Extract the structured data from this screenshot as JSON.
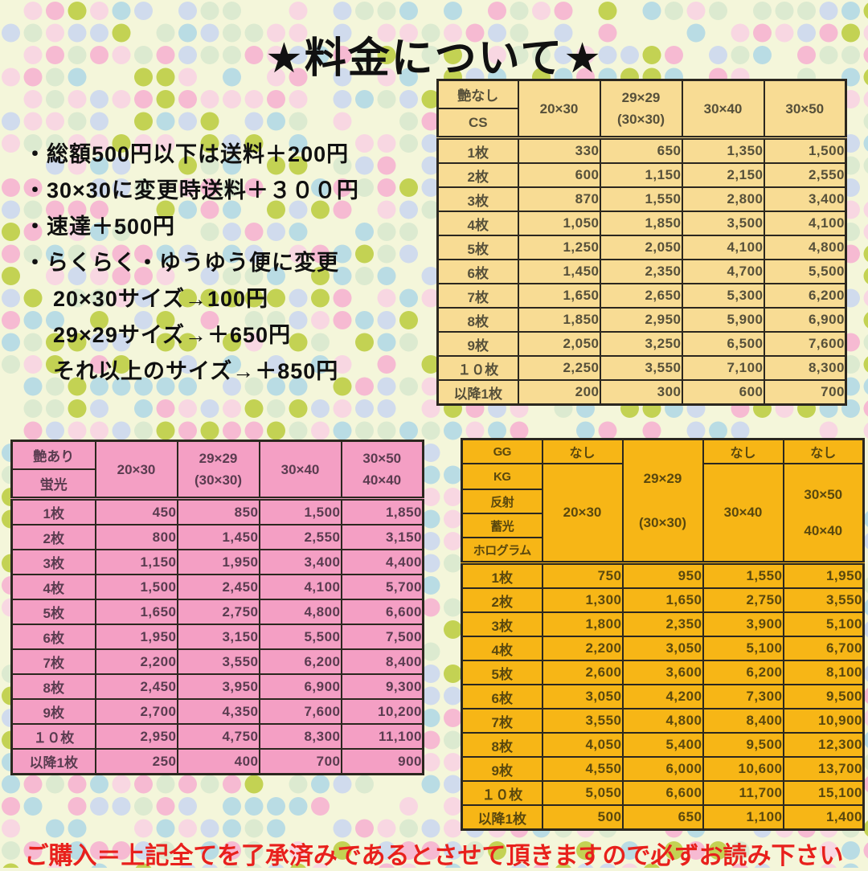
{
  "title": "★料金について★",
  "shipping_notes": [
    {
      "indent": false,
      "text": "・総額500円以下は送料＋200円"
    },
    {
      "indent": false,
      "text": "・30×30に変更時送料＋３００円"
    },
    {
      "indent": false,
      "text": "・速達＋500円"
    },
    {
      "indent": false,
      "text": "・らくらく・ゆうゆう便に変更"
    },
    {
      "indent": true,
      "text": "20×30サイズ→100円"
    },
    {
      "indent": true,
      "text": "29×29サイズ→＋650円"
    },
    {
      "indent": true,
      "text": "それ以上のサイズ→＋850円"
    }
  ],
  "quantity_labels": [
    "1枚",
    "2枚",
    "3枚",
    "4枚",
    "5枚",
    "6枚",
    "7枚",
    "8枚",
    "9枚",
    "１０枚",
    "以降1枚"
  ],
  "tables": {
    "matte": {
      "corner_labels": [
        "艶なし",
        "CS"
      ],
      "size_headers": [
        [
          "20×30"
        ],
        [
          "29×29",
          "(30×30)"
        ],
        [
          "30×40"
        ],
        [
          "30×50"
        ]
      ],
      "rows": [
        [
          "330",
          "650",
          "1,350",
          "1,500"
        ],
        [
          "600",
          "1,150",
          "2,150",
          "2,550"
        ],
        [
          "870",
          "1,550",
          "2,800",
          "3,400"
        ],
        [
          "1,050",
          "1,850",
          "3,500",
          "4,100"
        ],
        [
          "1,250",
          "2,050",
          "4,100",
          "4,800"
        ],
        [
          "1,450",
          "2,350",
          "4,700",
          "5,500"
        ],
        [
          "1,650",
          "2,650",
          "5,300",
          "6,200"
        ],
        [
          "1,850",
          "2,950",
          "5,900",
          "6,900"
        ],
        [
          "2,050",
          "3,250",
          "6,500",
          "7,600"
        ],
        [
          "2,250",
          "3,550",
          "7,100",
          "8,300"
        ],
        [
          "200",
          "300",
          "600",
          "700"
        ]
      ],
      "colors": {
        "bg": "#f8dc94",
        "fg": "#56503a"
      }
    },
    "glossy": {
      "corner_labels": [
        "艶あり",
        "蛍光"
      ],
      "size_headers": [
        [
          "20×30"
        ],
        [
          "29×29",
          "(30×30)"
        ],
        [
          "30×40"
        ],
        [
          "30×50",
          "40×40"
        ]
      ],
      "rows": [
        [
          "450",
          "850",
          "1,500",
          "1,850"
        ],
        [
          "800",
          "1,450",
          "2,550",
          "3,150"
        ],
        [
          "1,150",
          "1,950",
          "3,400",
          "4,400"
        ],
        [
          "1,500",
          "2,450",
          "4,100",
          "5,700"
        ],
        [
          "1,650",
          "2,750",
          "4,800",
          "6,600"
        ],
        [
          "1,950",
          "3,150",
          "5,500",
          "7,500"
        ],
        [
          "2,200",
          "3,550",
          "6,200",
          "8,400"
        ],
        [
          "2,450",
          "3,950",
          "6,900",
          "9,300"
        ],
        [
          "2,700",
          "4,350",
          "7,600",
          "10,200"
        ],
        [
          "2,950",
          "4,750",
          "8,300",
          "11,100"
        ],
        [
          "250",
          "400",
          "700",
          "900"
        ]
      ],
      "colors": {
        "bg": "#f49fc4",
        "fg": "#5a3c50"
      }
    },
    "special": {
      "corner_labels": [
        "GG",
        "KG",
        "反射",
        "蓄光",
        "ホログラム"
      ],
      "no_gloss_label": "なし",
      "nashi_columns": [
        0,
        2,
        3
      ],
      "size_headers": [
        [
          "20×30"
        ],
        [
          "29×29",
          "(30×30)"
        ],
        [
          "30×40"
        ],
        [
          "30×50",
          "40×40"
        ]
      ],
      "rows": [
        [
          "750",
          "950",
          "1,550",
          "1,950"
        ],
        [
          "1,300",
          "1,650",
          "2,750",
          "3,550"
        ],
        [
          "1,800",
          "2,350",
          "3,900",
          "5,100"
        ],
        [
          "2,200",
          "3,050",
          "5,100",
          "6,700"
        ],
        [
          "2,600",
          "3,600",
          "6,200",
          "8,100"
        ],
        [
          "3,050",
          "4,200",
          "7,300",
          "9,500"
        ],
        [
          "3,550",
          "4,800",
          "8,400",
          "10,900"
        ],
        [
          "4,050",
          "5,400",
          "9,500",
          "12,300"
        ],
        [
          "4,550",
          "6,000",
          "10,600",
          "13,700"
        ],
        [
          "5,050",
          "6,600",
          "11,700",
          "15,100"
        ],
        [
          "500",
          "650",
          "1,100",
          "1,400"
        ]
      ],
      "colors": {
        "bg": "#f7b616",
        "fg": "#5a480e"
      }
    }
  },
  "footer_notice": "ご購入＝上記全てを了承済みであるとさせて頂きますので必ずお読み下さい",
  "theme": {
    "background": "#f4f6da",
    "title_color": "#111111",
    "notice_color": "#e8201c",
    "table_border": "#2b271f",
    "dot_colors": [
      "#b9dce4",
      "#c3d253",
      "#f6bad2",
      "#d0dbed",
      "#f8d7e2",
      "#dcead0"
    ]
  }
}
